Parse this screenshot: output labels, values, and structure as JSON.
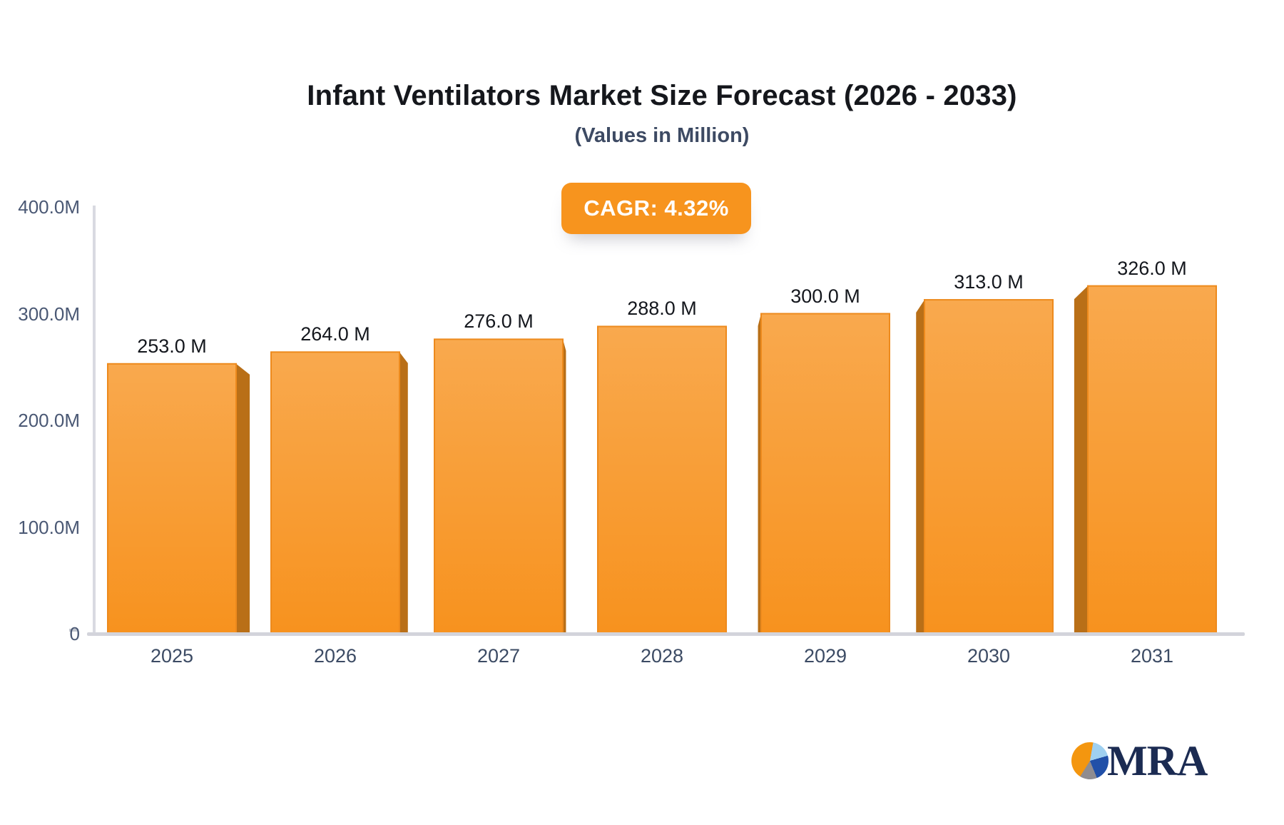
{
  "header": {
    "title": "Infant Ventilators Market Size Forecast (2026 - 2033)",
    "subtitle": "(Values in Million)",
    "cagr_badge": "CAGR: 4.32%"
  },
  "chart_data": {
    "type": "bar",
    "style": "3d-perspective-bars",
    "title": "Infant Ventilators Market Size Forecast (2026 - 2033)",
    "subtitle": "(Values in Million)",
    "categories": [
      "2025",
      "2026",
      "2027",
      "2028",
      "2029",
      "2030",
      "2031"
    ],
    "values": [
      253,
      264,
      276,
      288,
      300,
      313,
      326
    ],
    "value_labels": [
      "253.0 M",
      "264.0 M",
      "276.0 M",
      "288.0 M",
      "300.0 M",
      "313.0 M",
      "326.0 M"
    ],
    "unit": "Million",
    "ylim": [
      0,
      400
    ],
    "yticks": [
      {
        "value": 400,
        "label": "400.0M"
      },
      {
        "value": 300,
        "label": "300.0M"
      },
      {
        "value": 200,
        "label": "200.0M"
      },
      {
        "value": 100,
        "label": "100.0M"
      },
      {
        "value": 0,
        "label": "0"
      }
    ],
    "grid": false,
    "legend": false,
    "colors": {
      "bar_front_top": "#F9A94E",
      "bar_front_bottom": "#F7921E",
      "bar_border": "#ED8A1D",
      "bar_side": "#B96F17",
      "axis_line": "#D6D7DE",
      "tick": "#C2C6CF"
    }
  },
  "branding": {
    "logo_text": "MRA",
    "logo_colors": {
      "orange": "#F4960F",
      "light_blue": "#9FD0F0",
      "dark_blue": "#2150A8",
      "gray": "#8F8C90",
      "text_navy": "#1B2B52"
    }
  }
}
